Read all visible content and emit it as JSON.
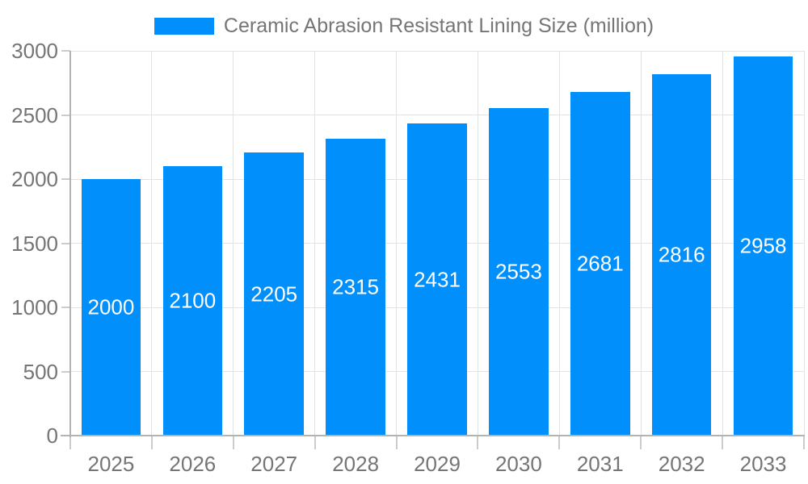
{
  "chart_data": {
    "type": "bar",
    "title": "Ceramic Abrasion Resistant Lining Size (million)",
    "categories": [
      "2025",
      "2026",
      "2027",
      "2028",
      "2029",
      "2030",
      "2031",
      "2032",
      "2033"
    ],
    "values": [
      2000,
      2100,
      2205,
      2315,
      2431,
      2553,
      2681,
      2816,
      2958
    ],
    "bar_value_labels": [
      "2000",
      "2100",
      "2205",
      "2315",
      "2431",
      "2553",
      "2681",
      "2816",
      "2958"
    ],
    "xlabel": "",
    "ylabel": "",
    "ylim": [
      0,
      3000
    ],
    "yticks": [
      0,
      500,
      1000,
      1500,
      2000,
      2500,
      3000
    ],
    "grid": true,
    "legend": {
      "position": "top",
      "label": "Ceramic Abrasion Resistant Lining Size (million)"
    },
    "colors": {
      "bar": "#008FFB",
      "bar_label": "#ffffff",
      "axis_text": "#757575",
      "grid_line": "#e3e3e3",
      "axis_line": "#b3b3b3",
      "tick": "#cccccc",
      "background": "#ffffff"
    }
  }
}
